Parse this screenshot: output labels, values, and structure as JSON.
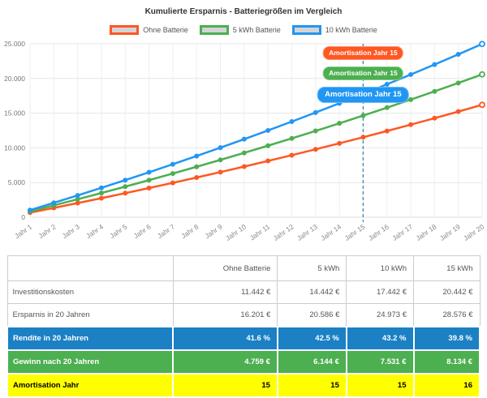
{
  "colors": {
    "orange": "#ff5722",
    "green": "#4caf50",
    "blue": "#2196f3",
    "table_blue": "#1b80c4",
    "table_green": "#4caf50",
    "table_yellow": "#ffff00",
    "vline": "#4e93b5",
    "legend_fill": "#d4d4d4",
    "grid_h": "#e7e7e7",
    "grid_v": "#efefef",
    "axis": "#dddddd",
    "tick_text": "#777777"
  },
  "chart_data": {
    "type": "line",
    "title": "Kumulierte Ersparnis - Batteriegrößen im Vergleich",
    "x": [
      "Jahr 1",
      "Jahr 2",
      "Jahr 3",
      "Jahr 4",
      "Jahr 5",
      "Jahr 6",
      "Jahr 7",
      "Jahr 8",
      "Jahr 9",
      "Jahr 10",
      "Jahr 11",
      "Jahr 12",
      "Jahr 13",
      "Jahr 14",
      "Jahr 15",
      "Jahr 16",
      "Jahr 17",
      "Jahr 18",
      "Jahr 19",
      "Jahr 20"
    ],
    "ylim": [
      0,
      25000
    ],
    "ytick_values": [
      0,
      5000,
      10000,
      15000,
      20000,
      25000
    ],
    "ytick_labels": [
      "0",
      "5.000",
      "10.000",
      "15.000",
      "20.000",
      "25.000"
    ],
    "grid": true,
    "legend_position": "top",
    "series": [
      {
        "name": "Ohne Batterie",
        "color_key": "orange",
        "values": [
          667,
          1347,
          2041,
          2748,
          3470,
          4206,
          4957,
          5723,
          6504,
          7301,
          8114,
          8943,
          9789,
          10651,
          11531,
          12429,
          13344,
          14278,
          15230,
          16201
        ]
      },
      {
        "name": "5 kWh Batterie",
        "color_key": "green",
        "values": [
          847,
          1712,
          2593,
          3492,
          4409,
          5345,
          6299,
          7272,
          8265,
          9278,
          10310,
          11364,
          12439,
          13535,
          14653,
          15793,
          16956,
          18143,
          19353,
          20586
        ]
      },
      {
        "name": "10 kWh Batterie",
        "color_key": "blue",
        "values": [
          1028,
          2076,
          3146,
          4236,
          5349,
          6483,
          7641,
          8822,
          10026,
          11254,
          12507,
          13785,
          15088,
          16418,
          17774,
          19157,
          20568,
          22007,
          23475,
          24973
        ]
      }
    ],
    "vline_x": "Jahr 15",
    "annotations": [
      {
        "label": "Amortisation Jahr 15",
        "series": "Ohne Batterie",
        "color_key": "orange"
      },
      {
        "label": "Amortisation Jahr 15",
        "series": "5 kWh Batterie",
        "color_key": "green"
      },
      {
        "label": "Amortisation Jahr 15",
        "series": "10 kWh Batterie",
        "color_key": "blue"
      }
    ]
  },
  "table": {
    "columns": [
      "",
      "Ohne Batterie",
      "5 kWh",
      "10 kWh",
      "15 kWh"
    ],
    "rows": [
      {
        "label": "Investitionskosten",
        "style": "plain",
        "values": [
          "11.442 €",
          "14.442 €",
          "17.442 €",
          "20.442 €"
        ]
      },
      {
        "label": "Ersparnis in 20 Jahren",
        "style": "plain",
        "values": [
          "16.201 €",
          "20.586 €",
          "24.973 €",
          "28.576 €"
        ]
      },
      {
        "label": "Rendite in 20 Jahren",
        "style": "blue",
        "values": [
          "41.6 %",
          "42.5 %",
          "43.2 %",
          "39.8 %"
        ]
      },
      {
        "label": "Gewinn nach 20 Jahren",
        "style": "green",
        "values": [
          "4.759 €",
          "6.144 €",
          "7.531 €",
          "8.134 €"
        ]
      },
      {
        "label": "Amortisation Jahr",
        "style": "yellow",
        "values": [
          "15",
          "15",
          "15",
          "16"
        ]
      }
    ]
  }
}
